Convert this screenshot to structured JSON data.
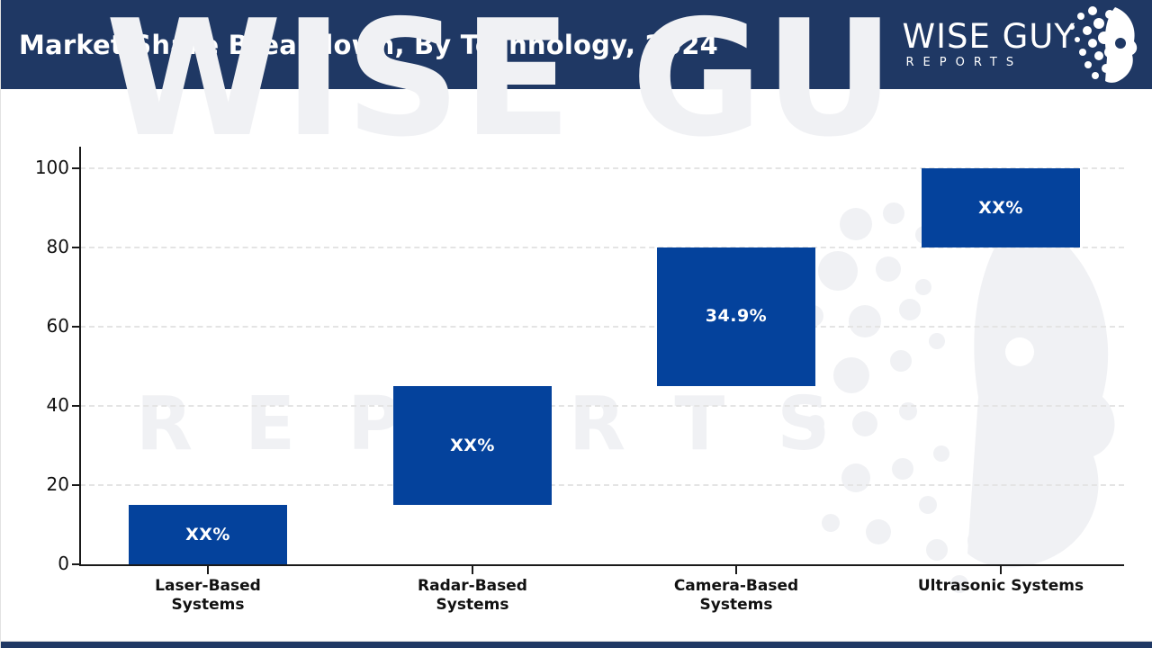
{
  "header": {
    "title": "Market Share Breakdown, By Technology, 2024",
    "bg_color": "#1f3864",
    "logo": {
      "line1": "WISE GUY",
      "line2": "REPORTS"
    }
  },
  "watermark": {
    "line1": "WISE GU",
    "line2": "REPORTS"
  },
  "chart_data": {
    "type": "bar",
    "subtype": "waterfall",
    "title": "Market Share Breakdown, By Technology, 2024",
    "categories": [
      "Laser-Based\nSystems",
      "Radar-Based\nSystems",
      "Camera-Based\nSystems",
      "Ultrasonic Systems"
    ],
    "segments": [
      {
        "category": "Laser-Based\nSystems",
        "start": 0,
        "end": 15,
        "label": "XX%"
      },
      {
        "category": "Radar-Based\nSystems",
        "start": 15,
        "end": 45,
        "label": "XX%"
      },
      {
        "category": "Camera-Based\nSystems",
        "start": 45.1,
        "end": 80,
        "label": "34.9%"
      },
      {
        "category": "Ultrasonic Systems",
        "start": 80,
        "end": 100,
        "label": "XX%"
      }
    ],
    "values_shown": [
      "XX%",
      "XX%",
      "34.9%",
      "XX%"
    ],
    "estimated_segment_sizes": [
      15,
      30,
      34.9,
      20
    ],
    "xlabel": "",
    "ylabel": "",
    "yticks": [
      0,
      20,
      40,
      60,
      80,
      100
    ],
    "ylim": [
      0,
      100
    ],
    "bar_color": "#04429c",
    "grid": "horizontal-dashed",
    "legend": "none"
  }
}
